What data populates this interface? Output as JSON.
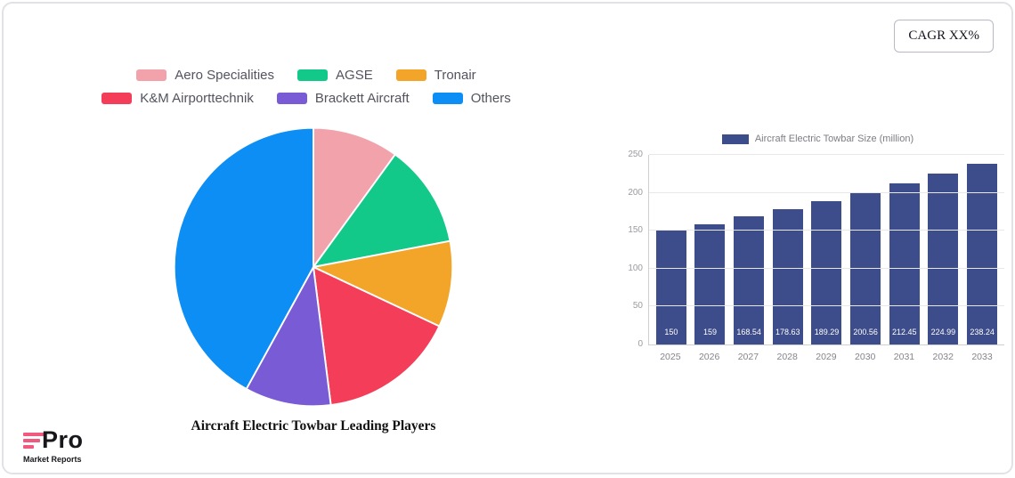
{
  "cagr": {
    "label": "CAGR XX%"
  },
  "logo": {
    "name": "Pro",
    "subtitle": "Market Reports"
  },
  "chart_data": [
    {
      "type": "pie",
      "title": "Aircraft Electric Towbar Leading Players",
      "labels": [
        "Aero Specialities",
        "AGSE",
        "Tronair",
        "K&M Airporttechnik",
        "Brackett Aircraft",
        "Others"
      ],
      "values": [
        10,
        12,
        10,
        16,
        10,
        42
      ],
      "colors": [
        "#f2a2aa",
        "#12c98a",
        "#f3a52a",
        "#f43e59",
        "#7a5bd6",
        "#0d8ef4"
      ],
      "legend_position": "top",
      "legend_rows": [
        [
          0,
          1,
          2
        ],
        [
          3,
          4,
          5
        ]
      ]
    },
    {
      "type": "bar",
      "title": "Aircraft Electric Towbar Size (million)",
      "categories": [
        "2025",
        "2026",
        "2027",
        "2028",
        "2029",
        "2030",
        "2031",
        "2032",
        "2033"
      ],
      "values": [
        150,
        159,
        168.54,
        178.63,
        189.29,
        200.56,
        212.45,
        224.99,
        238.24
      ],
      "bar_labels": [
        "150",
        "159",
        "168.54",
        "178.63",
        "189.29",
        "200.56",
        "212.45",
        "224.99",
        "238.24"
      ],
      "y_ticks": [
        0,
        50,
        100,
        150,
        200,
        250
      ],
      "ylim": [
        0,
        250
      ],
      "bar_color": "#3d4c8a",
      "grid": true,
      "legend_position": "top"
    }
  ]
}
